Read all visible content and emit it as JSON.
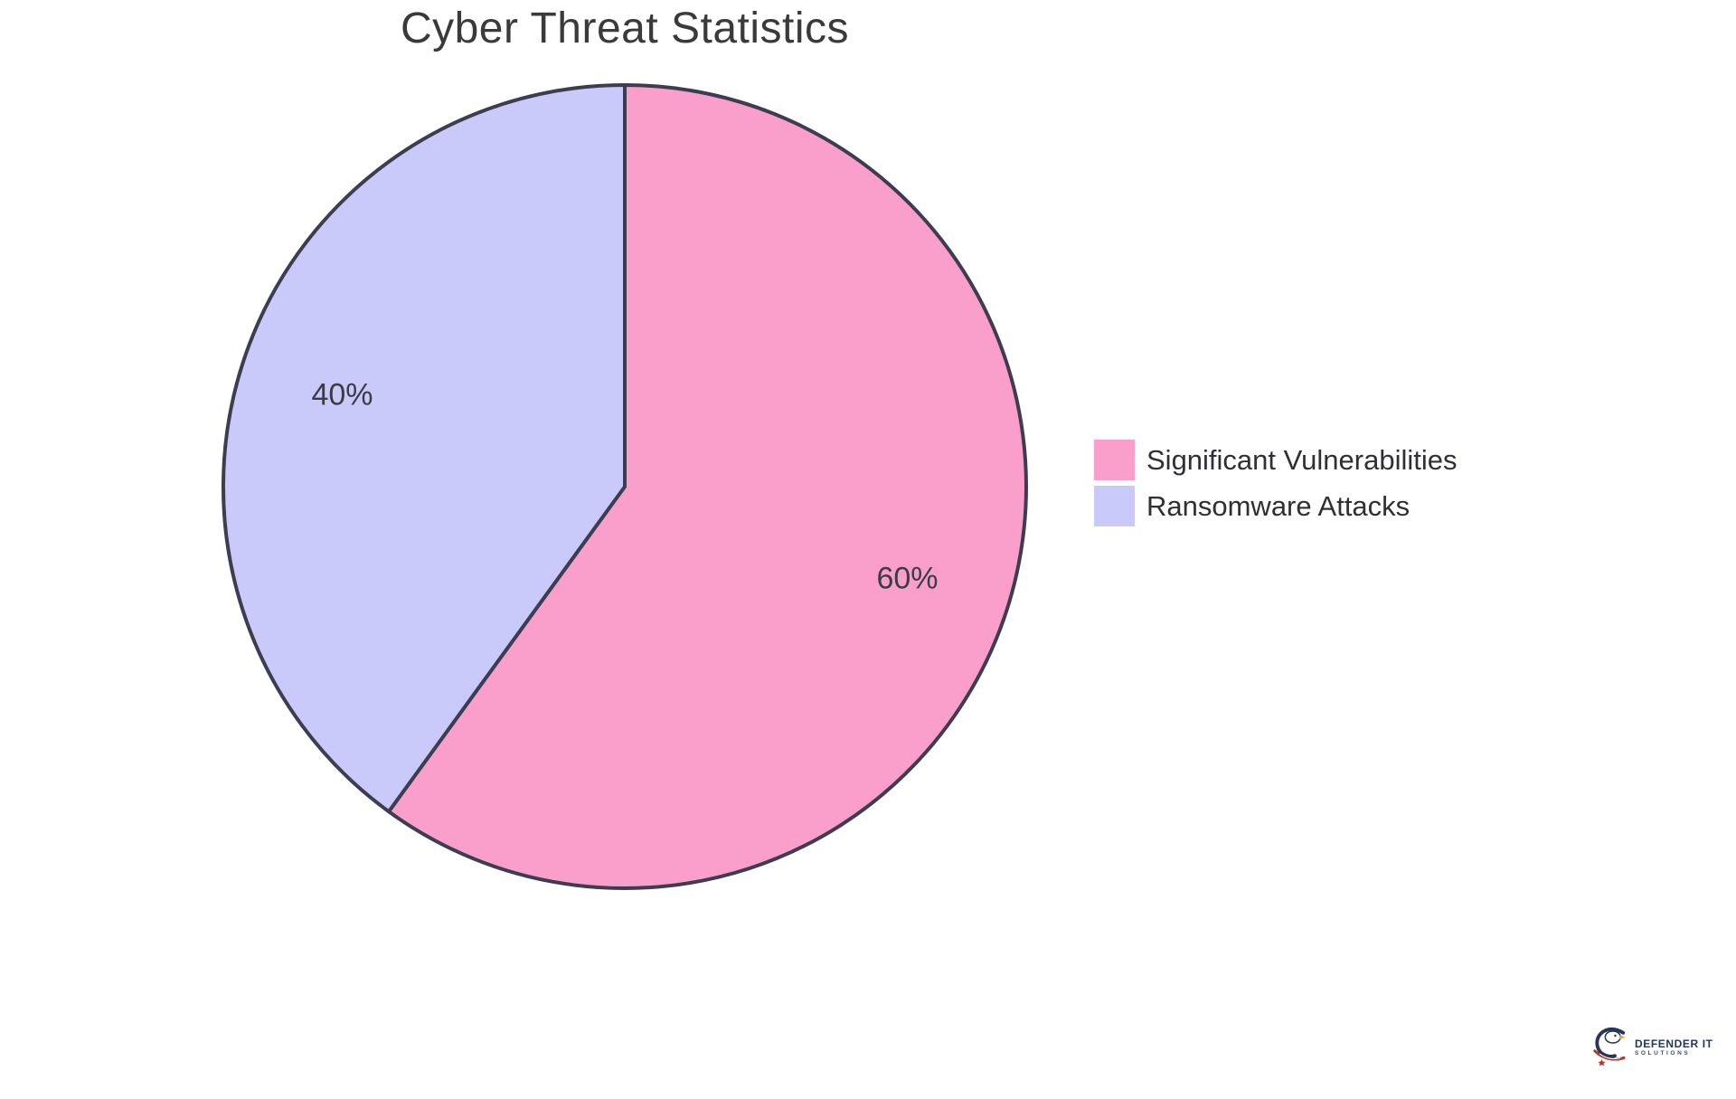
{
  "chart_data": {
    "type": "pie",
    "title": "Cyber Threat Statistics",
    "slices": [
      {
        "label": "Significant Vulnerabilities",
        "value": 60,
        "display": "60%",
        "color": "#FA9FCB"
      },
      {
        "label": "Ransomware Attacks",
        "value": 40,
        "display": "40%",
        "color": "#C9C9FA"
      }
    ],
    "start_angle_deg": 0,
    "direction": "clockwise",
    "legend_position": "right",
    "stroke_color": "#3d3d52",
    "label_color": "#3c3c46",
    "title_color": "#3a3a3a",
    "background_color": "#ffffff"
  },
  "watermark": {
    "brand": "DEFENDER IT",
    "tagline": "SOLUTIONS",
    "navy": "#24365c",
    "red": "#b03a2e",
    "gold": "#e8a33d"
  }
}
